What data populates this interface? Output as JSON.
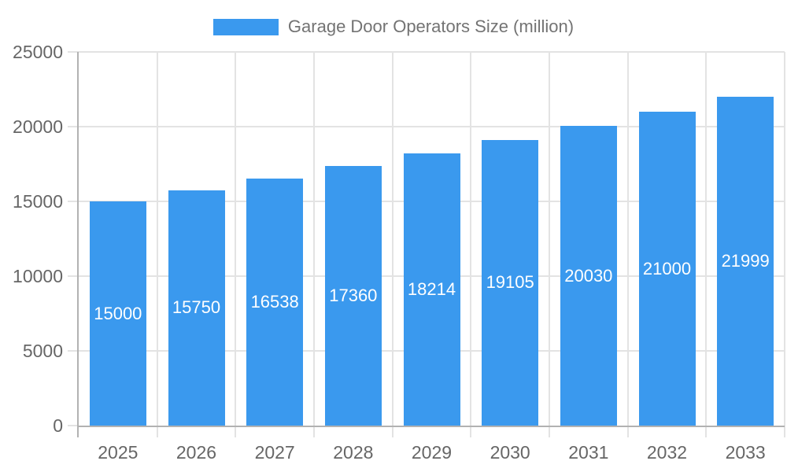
{
  "chart_data": {
    "type": "bar",
    "legend_label": "Garage Door Operators Size (million)",
    "categories": [
      "2025",
      "2026",
      "2027",
      "2028",
      "2029",
      "2030",
      "2031",
      "2032",
      "2033"
    ],
    "values": [
      15000,
      15750,
      16538,
      17360,
      18214,
      19105,
      20030,
      21000,
      21999
    ],
    "ylim": [
      0,
      25000
    ],
    "yticks": [
      0,
      5000,
      10000,
      15000,
      20000,
      25000
    ],
    "grid": true,
    "legend_position": "top",
    "value_labels_inside_bars": true,
    "colors": {
      "bar": "#3A99EE",
      "value_label": "#FFFFFF",
      "axis_label": "#666666",
      "legend_label": "#737373",
      "grid_line": "#E3E3E3",
      "axis_line": "#B2B2B2",
      "background": "#FFFFFF"
    }
  }
}
